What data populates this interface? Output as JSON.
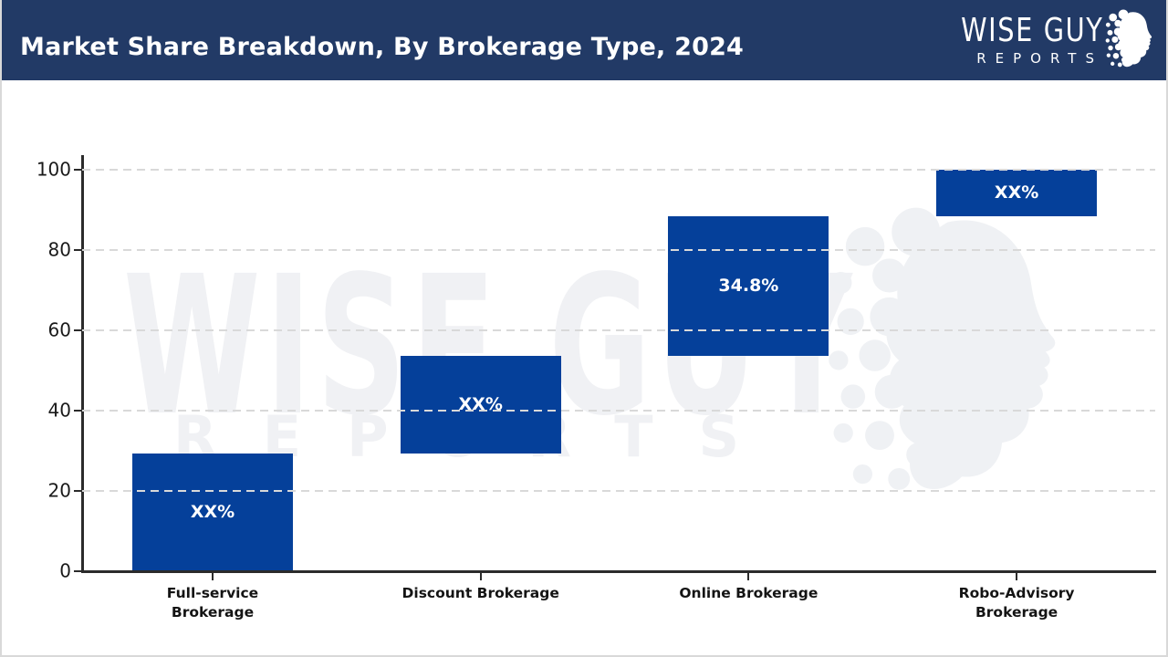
{
  "header": {
    "title": "Market Share Breakdown, By Brokerage Type, 2024",
    "bg_color": "#223a66",
    "logo": {
      "line1": "WISE GUY",
      "line2": "REPORTS"
    }
  },
  "watermark": {
    "line1": "WISE GUY",
    "line2": "REPORTS"
  },
  "chart_data": {
    "type": "bar",
    "variant": "waterfall",
    "title": "Market Share Breakdown, By Brokerage Type, 2024",
    "categories": [
      "Full-service Brokerage",
      "Discount Brokerage",
      "Online Brokerage",
      "Robo-Advisory Brokerage"
    ],
    "category_tick_lines": [
      [
        "Full-service",
        "Brokerage"
      ],
      [
        "Discount Brokerage"
      ],
      [
        "Online Brokerage"
      ],
      [
        "Robo-Advisory",
        "Brokerage"
      ]
    ],
    "bars": [
      {
        "category": "Full-service Brokerage",
        "start": 0,
        "end": 29.4,
        "label": "XX%"
      },
      {
        "category": "Discount Brokerage",
        "start": 29.4,
        "end": 53.7,
        "label": "XX%"
      },
      {
        "category": "Online Brokerage",
        "start": 53.7,
        "end": 88.5,
        "label": "34.8%"
      },
      {
        "category": "Robo-Advisory Brokerage",
        "start": 88.5,
        "end": 100,
        "label": "XX%"
      }
    ],
    "unit": "%",
    "ylim": [
      0,
      100
    ],
    "yticks": [
      0,
      20,
      40,
      60,
      80,
      100
    ],
    "grid": {
      "axis": "y",
      "style": "dashed",
      "color": "#d9d9d9",
      "on_top_of_bars": true
    },
    "bar_color": "#05409a",
    "bar_label_color": "#ffffff",
    "legend": "none"
  }
}
